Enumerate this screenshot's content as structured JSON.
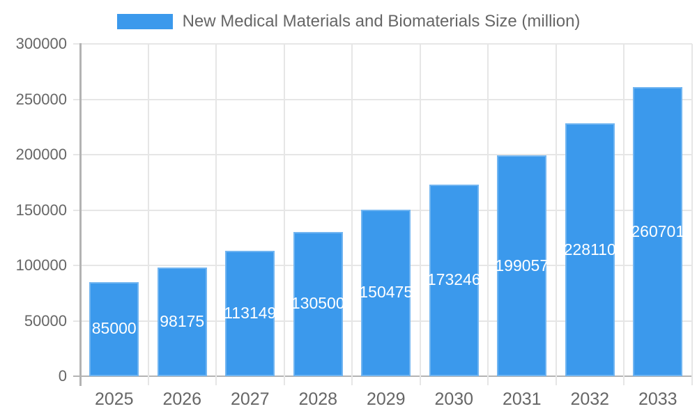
{
  "chart_data": {
    "type": "bar",
    "title": "New Medical Materials and Biomaterials Size (million)",
    "legend": {
      "position": "top",
      "label": "New Medical Materials and Biomaterials Size (million)"
    },
    "categories": [
      "2025",
      "2026",
      "2027",
      "2028",
      "2029",
      "2030",
      "2031",
      "2032",
      "2033"
    ],
    "series": [
      {
        "name": "New Medical Materials and Biomaterials Size (million)",
        "values": [
          85000,
          98175,
          113149,
          130500,
          150475,
          173246,
          199057,
          228110,
          260701
        ]
      }
    ],
    "bar_value_labels": [
      "85000",
      "98175",
      "113149",
      "130500",
      "150475",
      "173246",
      "199057",
      "228110",
      "260701"
    ],
    "xlabel": "",
    "ylabel": "",
    "ylim": [
      0,
      300000
    ],
    "yticks": [
      0,
      50000,
      100000,
      150000,
      200000,
      250000,
      300000
    ],
    "ytick_labels": [
      "0",
      "50000",
      "100000",
      "150000",
      "200000",
      "250000",
      "300000"
    ],
    "grid": true,
    "colors": {
      "bar": "#3b99ec",
      "bar_label": "#ffffff",
      "axis_text": "#666666",
      "grid_light": "#e6e6e6",
      "grid_dark": "#b3b3b3",
      "background": "#ffffff"
    }
  }
}
